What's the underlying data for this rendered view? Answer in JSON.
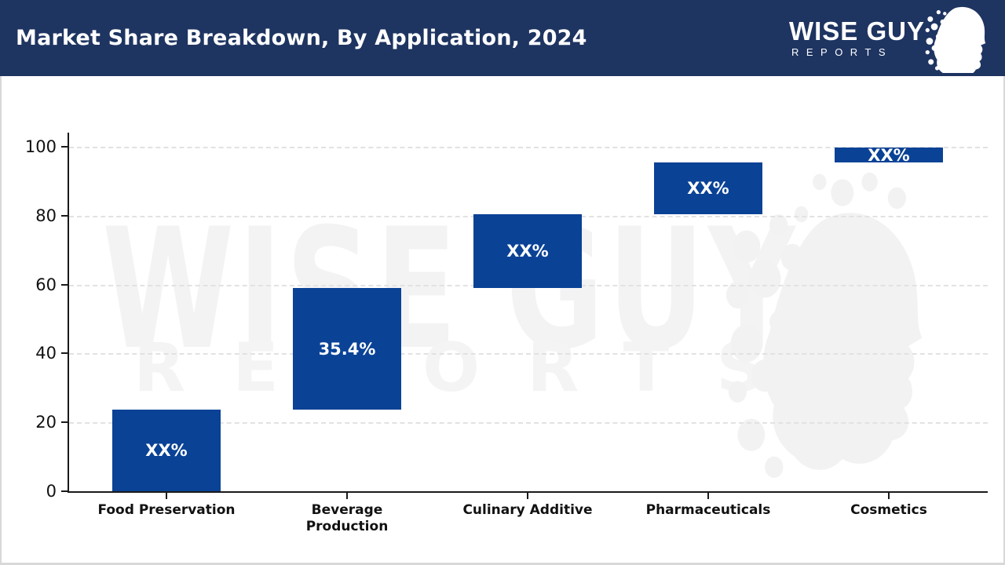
{
  "header": {
    "title": "Market Share Breakdown, By Application, 2024",
    "logo": {
      "line1": "WISE GUY",
      "line2": "REPORTS"
    }
  },
  "watermark": {
    "line1": "WISE GUY",
    "line2": "REPORTS"
  },
  "chart_data": {
    "type": "bar",
    "subtype": "floating-segment-waterfall",
    "title": "Market Share Breakdown, By Application, 2024",
    "categories": [
      "Food Preservation",
      "Beverage Production",
      "Culinary Additive",
      "Pharmaceuticals",
      "Cosmetics"
    ],
    "segments": [
      {
        "category": "Food Preservation",
        "start": 0,
        "end": 23.6,
        "label": "XX%"
      },
      {
        "category": "Beverage Production",
        "start": 23.6,
        "end": 59.0,
        "label": "35.4%"
      },
      {
        "category": "Culinary Additive",
        "start": 59.0,
        "end": 80.4,
        "label": "XX%"
      },
      {
        "category": "Pharmaceuticals",
        "start": 80.4,
        "end": 95.4,
        "label": "XX%"
      },
      {
        "category": "Cosmetics",
        "start": 95.4,
        "end": 99.8,
        "label": "XX%"
      }
    ],
    "yticks": [
      0,
      20,
      40,
      60,
      80,
      100
    ],
    "ylim": [
      0,
      104
    ],
    "xlabel": "",
    "ylabel": "",
    "grid": "horizontal-dashed",
    "legend": "none",
    "bar_color": "#0a4296",
    "bar_label_color": "#ffffff",
    "axis_color": "#1a1a1a",
    "gridline_color": "#e2e2e2",
    "header_color": "#1e3461"
  }
}
